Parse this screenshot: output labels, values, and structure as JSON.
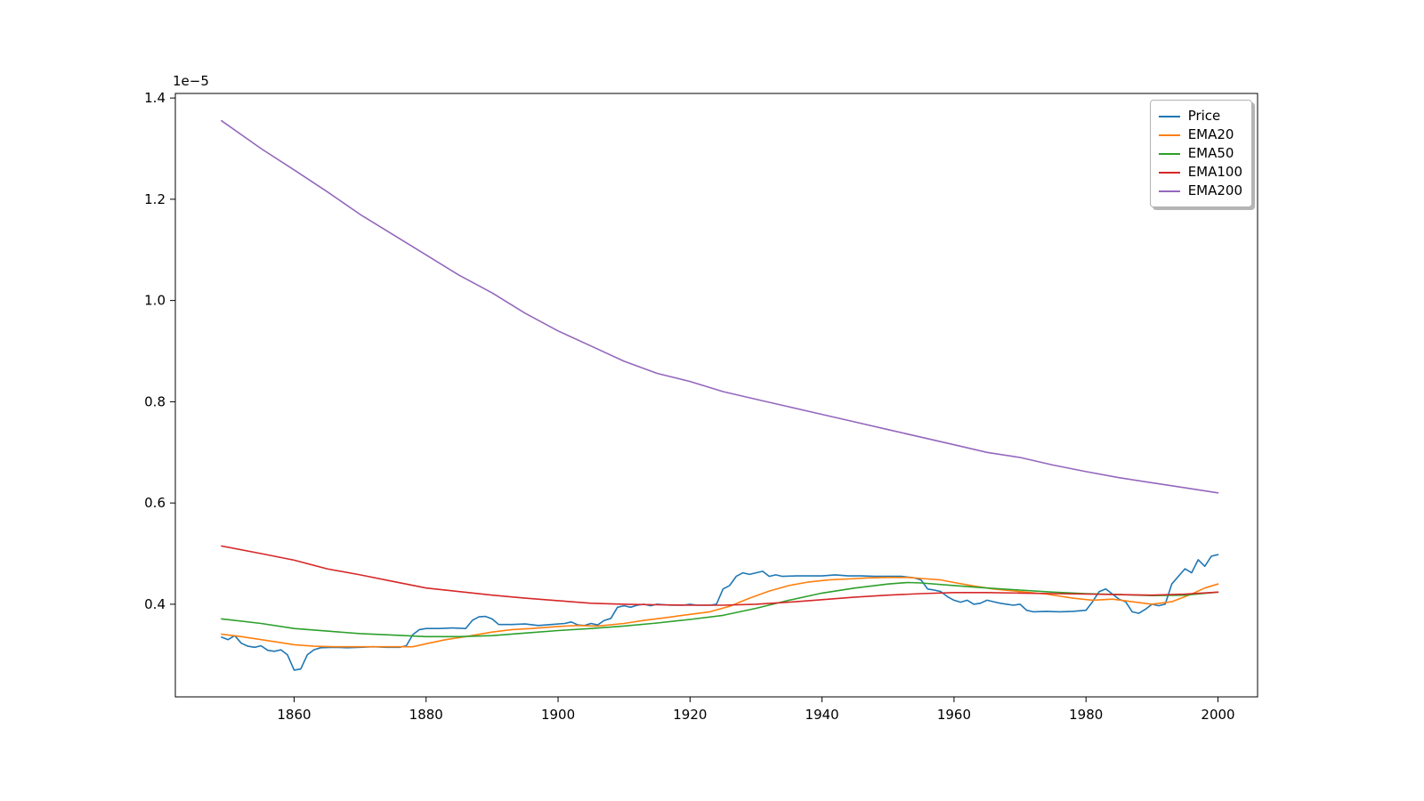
{
  "chart_data": {
    "type": "line",
    "title": "",
    "xlabel": "",
    "ylabel": "",
    "y_offset_label": "1e−5",
    "x_range": [
      1842,
      2006
    ],
    "y_range": [
      0.217,
      1.409
    ],
    "xticks": [
      1860,
      1880,
      1900,
      1920,
      1940,
      1960,
      1980,
      2000
    ],
    "yticks": [
      0.4,
      0.6,
      0.8,
      1.0,
      1.2,
      1.4
    ],
    "y_units": "1e-5",
    "grid": false,
    "legend_position": "upper right",
    "series": [
      {
        "name": "Price",
        "color": "#1f77b4",
        "points": [
          [
            1849,
            0.335
          ],
          [
            1850,
            0.33
          ],
          [
            1851,
            0.338
          ],
          [
            1852,
            0.323
          ],
          [
            1853,
            0.317
          ],
          [
            1854,
            0.315
          ],
          [
            1855,
            0.318
          ],
          [
            1856,
            0.309
          ],
          [
            1857,
            0.307
          ],
          [
            1858,
            0.31
          ],
          [
            1859,
            0.3
          ],
          [
            1860,
            0.27
          ],
          [
            1861,
            0.272
          ],
          [
            1862,
            0.3
          ],
          [
            1863,
            0.31
          ],
          [
            1864,
            0.314
          ],
          [
            1866,
            0.315
          ],
          [
            1868,
            0.314
          ],
          [
            1870,
            0.315
          ],
          [
            1872,
            0.316
          ],
          [
            1874,
            0.315
          ],
          [
            1876,
            0.315
          ],
          [
            1877,
            0.318
          ],
          [
            1878,
            0.34
          ],
          [
            1879,
            0.35
          ],
          [
            1880,
            0.352
          ],
          [
            1882,
            0.352
          ],
          [
            1884,
            0.353
          ],
          [
            1886,
            0.352
          ],
          [
            1887,
            0.368
          ],
          [
            1888,
            0.375
          ],
          [
            1889,
            0.376
          ],
          [
            1890,
            0.371
          ],
          [
            1891,
            0.36
          ],
          [
            1893,
            0.36
          ],
          [
            1895,
            0.361
          ],
          [
            1897,
            0.358
          ],
          [
            1899,
            0.36
          ],
          [
            1901,
            0.362
          ],
          [
            1902,
            0.365
          ],
          [
            1903,
            0.359
          ],
          [
            1904,
            0.358
          ],
          [
            1905,
            0.362
          ],
          [
            1906,
            0.359
          ],
          [
            1907,
            0.368
          ],
          [
            1908,
            0.372
          ],
          [
            1909,
            0.394
          ],
          [
            1910,
            0.397
          ],
          [
            1911,
            0.394
          ],
          [
            1912,
            0.398
          ],
          [
            1913,
            0.4
          ],
          [
            1914,
            0.397
          ],
          [
            1915,
            0.4
          ],
          [
            1917,
            0.398
          ],
          [
            1919,
            0.398
          ],
          [
            1920,
            0.4
          ],
          [
            1921,
            0.398
          ],
          [
            1923,
            0.398
          ],
          [
            1924,
            0.4
          ],
          [
            1925,
            0.43
          ],
          [
            1926,
            0.437
          ],
          [
            1927,
            0.455
          ],
          [
            1928,
            0.462
          ],
          [
            1929,
            0.459
          ],
          [
            1930,
            0.462
          ],
          [
            1931,
            0.465
          ],
          [
            1932,
            0.455
          ],
          [
            1933,
            0.458
          ],
          [
            1934,
            0.455
          ],
          [
            1936,
            0.456
          ],
          [
            1938,
            0.456
          ],
          [
            1940,
            0.456
          ],
          [
            1942,
            0.458
          ],
          [
            1944,
            0.456
          ],
          [
            1946,
            0.456
          ],
          [
            1948,
            0.455
          ],
          [
            1950,
            0.455
          ],
          [
            1952,
            0.455
          ],
          [
            1954,
            0.452
          ],
          [
            1955,
            0.448
          ],
          [
            1956,
            0.43
          ],
          [
            1957,
            0.428
          ],
          [
            1958,
            0.425
          ],
          [
            1959,
            0.415
          ],
          [
            1960,
            0.408
          ],
          [
            1961,
            0.404
          ],
          [
            1962,
            0.408
          ],
          [
            1963,
            0.4
          ],
          [
            1964,
            0.402
          ],
          [
            1965,
            0.408
          ],
          [
            1966,
            0.405
          ],
          [
            1967,
            0.402
          ],
          [
            1968,
            0.4
          ],
          [
            1969,
            0.398
          ],
          [
            1970,
            0.4
          ],
          [
            1971,
            0.388
          ],
          [
            1972,
            0.385
          ],
          [
            1974,
            0.386
          ],
          [
            1976,
            0.385
          ],
          [
            1978,
            0.386
          ],
          [
            1980,
            0.388
          ],
          [
            1981,
            0.405
          ],
          [
            1982,
            0.425
          ],
          [
            1983,
            0.43
          ],
          [
            1984,
            0.42
          ],
          [
            1985,
            0.41
          ],
          [
            1986,
            0.405
          ],
          [
            1987,
            0.385
          ],
          [
            1988,
            0.382
          ],
          [
            1989,
            0.39
          ],
          [
            1990,
            0.4
          ],
          [
            1991,
            0.397
          ],
          [
            1992,
            0.4
          ],
          [
            1993,
            0.44
          ],
          [
            1994,
            0.455
          ],
          [
            1995,
            0.47
          ],
          [
            1996,
            0.462
          ],
          [
            1997,
            0.488
          ],
          [
            1998,
            0.475
          ],
          [
            1999,
            0.495
          ],
          [
            2000,
            0.498
          ]
        ]
      },
      {
        "name": "EMA20",
        "color": "#ff7f0e",
        "points": [
          [
            1849,
            0.341
          ],
          [
            1852,
            0.336
          ],
          [
            1855,
            0.33
          ],
          [
            1858,
            0.324
          ],
          [
            1860,
            0.32
          ],
          [
            1863,
            0.317
          ],
          [
            1866,
            0.316
          ],
          [
            1870,
            0.316
          ],
          [
            1875,
            0.316
          ],
          [
            1878,
            0.316
          ],
          [
            1880,
            0.322
          ],
          [
            1883,
            0.33
          ],
          [
            1886,
            0.336
          ],
          [
            1890,
            0.345
          ],
          [
            1893,
            0.35
          ],
          [
            1896,
            0.352
          ],
          [
            1900,
            0.356
          ],
          [
            1903,
            0.358
          ],
          [
            1906,
            0.357
          ],
          [
            1910,
            0.362
          ],
          [
            1913,
            0.368
          ],
          [
            1916,
            0.373
          ],
          [
            1920,
            0.38
          ],
          [
            1923,
            0.385
          ],
          [
            1926,
            0.396
          ],
          [
            1929,
            0.412
          ],
          [
            1932,
            0.426
          ],
          [
            1935,
            0.437
          ],
          [
            1938,
            0.444
          ],
          [
            1941,
            0.448
          ],
          [
            1944,
            0.45
          ],
          [
            1947,
            0.452
          ],
          [
            1950,
            0.453
          ],
          [
            1953,
            0.453
          ],
          [
            1956,
            0.45
          ],
          [
            1958,
            0.448
          ],
          [
            1960,
            0.443
          ],
          [
            1963,
            0.436
          ],
          [
            1966,
            0.43
          ],
          [
            1970,
            0.425
          ],
          [
            1974,
            0.42
          ],
          [
            1978,
            0.412
          ],
          [
            1981,
            0.408
          ],
          [
            1984,
            0.41
          ],
          [
            1987,
            0.405
          ],
          [
            1990,
            0.4
          ],
          [
            1993,
            0.405
          ],
          [
            1996,
            0.42
          ],
          [
            1998,
            0.432
          ],
          [
            2000,
            0.44
          ]
        ]
      },
      {
        "name": "EMA50",
        "color": "#2ca02c",
        "points": [
          [
            1849,
            0.371
          ],
          [
            1855,
            0.362
          ],
          [
            1860,
            0.352
          ],
          [
            1865,
            0.347
          ],
          [
            1870,
            0.342
          ],
          [
            1875,
            0.339
          ],
          [
            1880,
            0.336
          ],
          [
            1885,
            0.336
          ],
          [
            1890,
            0.338
          ],
          [
            1895,
            0.343
          ],
          [
            1900,
            0.348
          ],
          [
            1905,
            0.352
          ],
          [
            1910,
            0.357
          ],
          [
            1915,
            0.363
          ],
          [
            1920,
            0.37
          ],
          [
            1925,
            0.378
          ],
          [
            1930,
            0.392
          ],
          [
            1935,
            0.408
          ],
          [
            1940,
            0.422
          ],
          [
            1945,
            0.432
          ],
          [
            1950,
            0.44
          ],
          [
            1953,
            0.443
          ],
          [
            1955,
            0.442
          ],
          [
            1960,
            0.437
          ],
          [
            1965,
            0.432
          ],
          [
            1970,
            0.428
          ],
          [
            1975,
            0.424
          ],
          [
            1980,
            0.421
          ],
          [
            1985,
            0.419
          ],
          [
            1990,
            0.417
          ],
          [
            1995,
            0.418
          ],
          [
            2000,
            0.424
          ]
        ]
      },
      {
        "name": "EMA100",
        "color": "#d62728",
        "points": [
          [
            1849,
            0.515
          ],
          [
            1855,
            0.5
          ],
          [
            1860,
            0.487
          ],
          [
            1865,
            0.47
          ],
          [
            1870,
            0.458
          ],
          [
            1875,
            0.445
          ],
          [
            1880,
            0.432
          ],
          [
            1885,
            0.425
          ],
          [
            1890,
            0.418
          ],
          [
            1895,
            0.412
          ],
          [
            1900,
            0.407
          ],
          [
            1905,
            0.402
          ],
          [
            1910,
            0.4
          ],
          [
            1915,
            0.399
          ],
          [
            1920,
            0.398
          ],
          [
            1925,
            0.398
          ],
          [
            1930,
            0.4
          ],
          [
            1935,
            0.404
          ],
          [
            1940,
            0.409
          ],
          [
            1945,
            0.414
          ],
          [
            1950,
            0.418
          ],
          [
            1955,
            0.421
          ],
          [
            1960,
            0.423
          ],
          [
            1965,
            0.423
          ],
          [
            1970,
            0.422
          ],
          [
            1975,
            0.421
          ],
          [
            1980,
            0.42
          ],
          [
            1985,
            0.419
          ],
          [
            1990,
            0.418
          ],
          [
            1995,
            0.42
          ],
          [
            2000,
            0.424
          ]
        ]
      },
      {
        "name": "EMA200",
        "color": "#9467bd",
        "points": [
          [
            1849,
            1.355
          ],
          [
            1855,
            1.3
          ],
          [
            1860,
            1.258
          ],
          [
            1865,
            1.215
          ],
          [
            1870,
            1.17
          ],
          [
            1875,
            1.13
          ],
          [
            1880,
            1.09
          ],
          [
            1885,
            1.05
          ],
          [
            1890,
            1.015
          ],
          [
            1895,
            0.975
          ],
          [
            1900,
            0.94
          ],
          [
            1905,
            0.91
          ],
          [
            1910,
            0.88
          ],
          [
            1915,
            0.856
          ],
          [
            1920,
            0.84
          ],
          [
            1925,
            0.82
          ],
          [
            1930,
            0.805
          ],
          [
            1935,
            0.79
          ],
          [
            1940,
            0.775
          ],
          [
            1945,
            0.76
          ],
          [
            1950,
            0.745
          ],
          [
            1955,
            0.73
          ],
          [
            1960,
            0.715
          ],
          [
            1965,
            0.7
          ],
          [
            1970,
            0.69
          ],
          [
            1975,
            0.675
          ],
          [
            1980,
            0.662
          ],
          [
            1985,
            0.65
          ],
          [
            1990,
            0.64
          ],
          [
            1995,
            0.63
          ],
          [
            2000,
            0.62
          ]
        ]
      }
    ]
  },
  "legend": {
    "entries": [
      "Price",
      "EMA20",
      "EMA50",
      "EMA100",
      "EMA200"
    ]
  }
}
